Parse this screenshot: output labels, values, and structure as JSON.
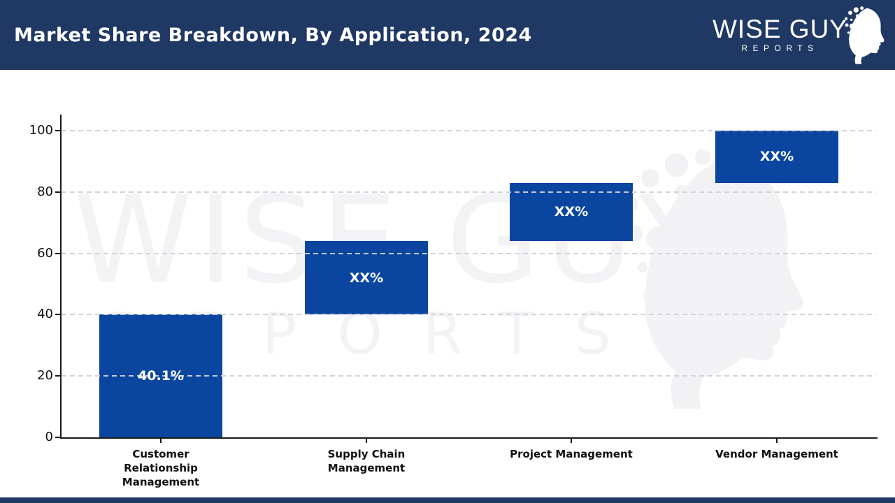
{
  "header": {
    "title": "Market Share Breakdown, By Application, 2024",
    "logo": {
      "brand": "WISE GUY",
      "brand_sub": "REPORTS"
    },
    "bg_color": "#1f3864"
  },
  "watermark": {
    "brand": "WISE GUY",
    "brand_sub": "REPORTS"
  },
  "chart_data": {
    "type": "bar",
    "subtype": "waterfall",
    "title": "Market Share Breakdown, By Application, 2024",
    "categories": [
      "Customer Relationship Management",
      "Supply Chain Management",
      "Project Management",
      "Vendor Management"
    ],
    "category_lines": [
      [
        "Customer",
        "Relationship",
        "Management"
      ],
      [
        "Supply Chain",
        "Management"
      ],
      [
        "Project Management"
      ],
      [
        "Vendor Management"
      ]
    ],
    "segments": [
      {
        "category": "Customer Relationship Management",
        "label": "40.1%",
        "from": 0,
        "to": 40.1
      },
      {
        "category": "Supply Chain Management",
        "label": "XX%",
        "from": 40.1,
        "to": 64
      },
      {
        "category": "Project Management",
        "label": "XX%",
        "from": 64,
        "to": 83
      },
      {
        "category": "Vendor Management",
        "label": "XX%",
        "from": 83,
        "to": 100
      }
    ],
    "yticks": [
      0,
      20,
      40,
      60,
      80,
      100
    ],
    "ylim": [
      0,
      105
    ],
    "grid": true,
    "grid_style": "dashed",
    "legend": false,
    "bar_color": "#0a46a0",
    "bar_label_color": "#ffffff",
    "axis_color": "#1a1a1a"
  }
}
